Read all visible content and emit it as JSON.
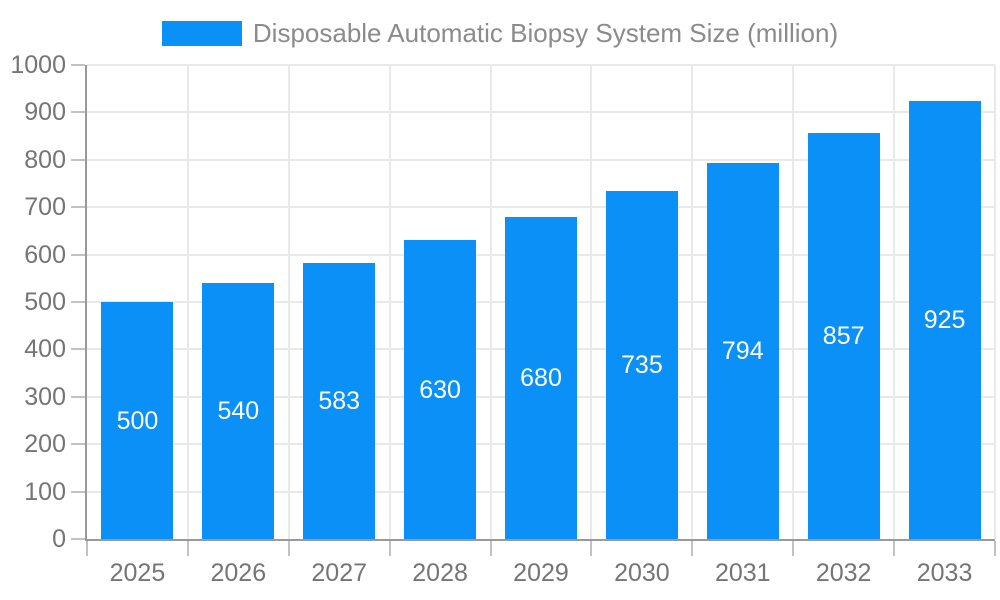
{
  "chart_data": {
    "type": "bar",
    "title": "Disposable Automatic Biopsy System Size (million)",
    "xlabel": "",
    "ylabel": "",
    "categories": [
      "2025",
      "2026",
      "2027",
      "2028",
      "2029",
      "2030",
      "2031",
      "2032",
      "2033"
    ],
    "values": [
      500,
      540,
      583,
      630,
      680,
      735,
      794,
      857,
      925
    ],
    "bar_value_labels": [
      "500",
      "540",
      "583",
      "630",
      "680",
      "735",
      "794",
      "857",
      "925"
    ],
    "ylim": [
      0,
      1000
    ],
    "y_tick_step": 100,
    "y_tick_values": [
      0,
      100,
      200,
      300,
      400,
      500,
      600,
      700,
      800,
      900,
      1000
    ],
    "y_tick_labels": [
      "0",
      "100",
      "200",
      "300",
      "400",
      "500",
      "600",
      "700",
      "800",
      "900",
      "1000"
    ],
    "grid": true,
    "legend": {
      "position": "top",
      "label": "Disposable Automatic Biopsy System Size (million)"
    },
    "colors": {
      "bar": "#0b90f7",
      "grid_line": "#e9e9e9",
      "axis_line": "#999999",
      "tick_mark": "#c2c2c2",
      "tick_label": "#757575",
      "legend_text": "#8b8b8b",
      "value_label": "#ffffff",
      "background": "#ffffff"
    }
  }
}
